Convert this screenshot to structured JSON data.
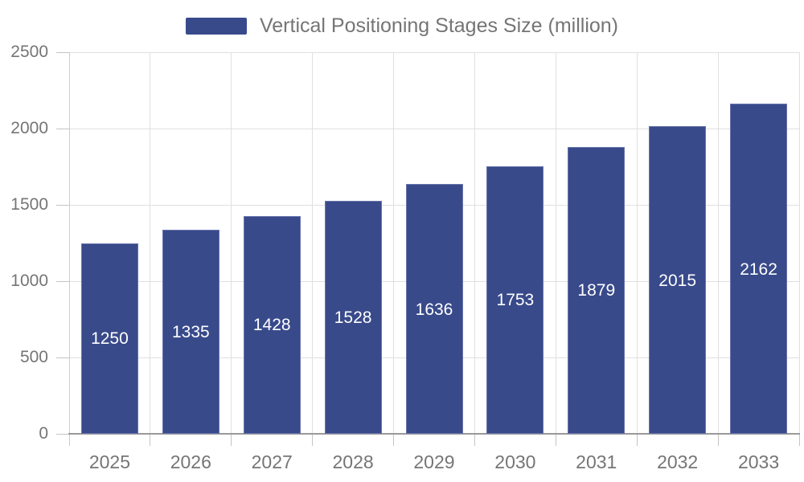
{
  "chart_data": {
    "type": "bar",
    "title": "Vertical Positioning Stages Size (million)",
    "categories": [
      "2025",
      "2026",
      "2027",
      "2028",
      "2029",
      "2030",
      "2031",
      "2032",
      "2033"
    ],
    "values": [
      1250,
      1335,
      1428,
      1528,
      1636,
      1753,
      1879,
      2015,
      2162
    ],
    "xlabel": "",
    "ylabel": "",
    "ylim": [
      0,
      2500
    ],
    "ytick_interval": 500,
    "ytick_labels": [
      "0",
      "500",
      "1000",
      "1500",
      "2000",
      "2500"
    ],
    "grid": true,
    "legend_position": "top",
    "value_labels_inside_bars": true,
    "colors": {
      "bar_fill": "#394A8B",
      "bar_border": "#6874AB",
      "value_text": "#FFFFFF",
      "axis_text": "#757575",
      "legend_text": "#757575",
      "grid_line": "#E0E0E0",
      "y_axis_line": "#CCCCCC",
      "x_axis_line": "#999999",
      "tick_mark": "#C4C4C4",
      "background": "#FFFFFF"
    }
  }
}
